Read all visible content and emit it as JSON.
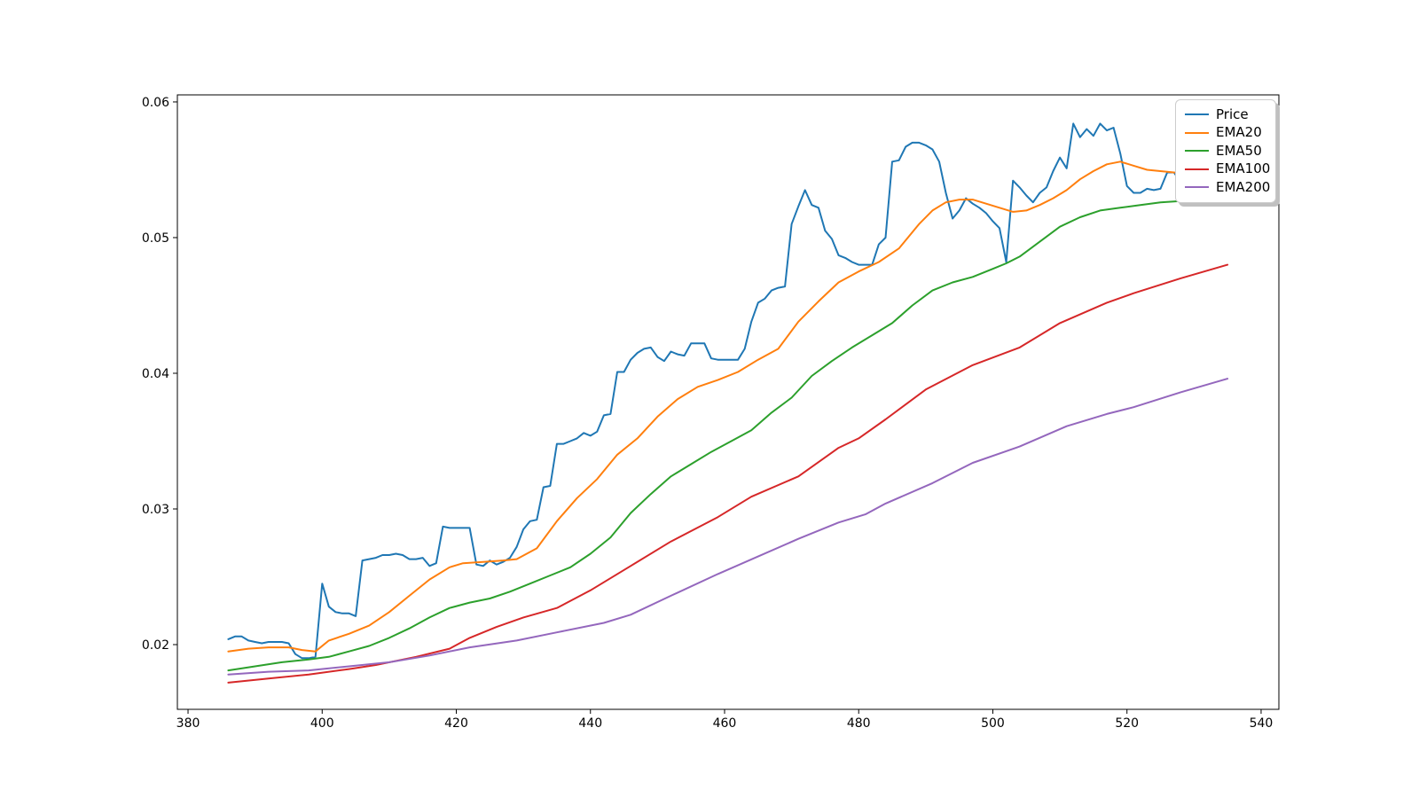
{
  "chart_data": {
    "type": "line",
    "title": "",
    "xlabel": "",
    "ylabel": "",
    "xlim": [
      378.41,
      542.65
    ],
    "ylim": [
      0.01523,
      0.06052
    ],
    "xticks": [
      380,
      400,
      420,
      440,
      460,
      480,
      500,
      520,
      540
    ],
    "yticks": [
      0.02,
      0.03,
      0.04,
      0.05,
      0.06
    ],
    "grid": false,
    "legend": {
      "position": "upper-right",
      "shadow": true
    },
    "series": [
      {
        "name": "Price",
        "color": "#1f77b4",
        "x_start": 386,
        "x_step": 1,
        "values": [
          0.0204,
          0.0206,
          0.0206,
          0.0203,
          0.0202,
          0.0201,
          0.0202,
          0.0202,
          0.0202,
          0.0201,
          0.0193,
          0.019,
          0.019,
          0.0191,
          0.0245,
          0.0228,
          0.0224,
          0.0223,
          0.0223,
          0.0221,
          0.0262,
          0.0263,
          0.0264,
          0.0266,
          0.0266,
          0.0267,
          0.0266,
          0.0263,
          0.0263,
          0.0264,
          0.0258,
          0.026,
          0.0287,
          0.0286,
          0.0286,
          0.0286,
          0.0286,
          0.0259,
          0.0258,
          0.0262,
          0.0259,
          0.0261,
          0.0264,
          0.0272,
          0.0285,
          0.0291,
          0.0292,
          0.0316,
          0.0317,
          0.0348,
          0.0348,
          0.035,
          0.0352,
          0.0356,
          0.0354,
          0.0357,
          0.0369,
          0.037,
          0.0401,
          0.0401,
          0.041,
          0.0415,
          0.0418,
          0.0419,
          0.0412,
          0.0409,
          0.0416,
          0.0414,
          0.0413,
          0.0422,
          0.0422,
          0.0422,
          0.0411,
          0.041,
          0.041,
          0.041,
          0.041,
          0.0418,
          0.0438,
          0.0452,
          0.0455,
          0.0461,
          0.0463,
          0.0464,
          0.051,
          0.0523,
          0.0535,
          0.0524,
          0.0522,
          0.0505,
          0.0499,
          0.0487,
          0.0485,
          0.0482,
          0.048,
          0.048,
          0.048,
          0.0495,
          0.05,
          0.0556,
          0.0557,
          0.0567,
          0.057,
          0.057,
          0.0568,
          0.0565,
          0.0556,
          0.0533,
          0.0514,
          0.052,
          0.0529,
          0.0525,
          0.0522,
          0.0518,
          0.0512,
          0.0507,
          0.0482,
          0.0542,
          0.0537,
          0.0531,
          0.0526,
          0.0533,
          0.0537,
          0.0549,
          0.0559,
          0.0551,
          0.0584,
          0.0574,
          0.058,
          0.0575,
          0.0584,
          0.0579,
          0.0581,
          0.0562,
          0.0538,
          0.0533,
          0.0533,
          0.0536,
          0.0535,
          0.0536,
          0.0548,
          0.0548,
          0.0541,
          0.0566,
          0.0556,
          0.0552,
          0.055,
          0.0552,
          0.055,
          0.0551
        ]
      },
      {
        "name": "EMA20",
        "color": "#ff7f0e",
        "points": [
          [
            386,
            0.0195
          ],
          [
            389,
            0.0197
          ],
          [
            392,
            0.0198
          ],
          [
            395,
            0.0198
          ],
          [
            397,
            0.0196
          ],
          [
            399,
            0.0195
          ],
          [
            401,
            0.0203
          ],
          [
            404,
            0.0208
          ],
          [
            407,
            0.0214
          ],
          [
            410,
            0.0224
          ],
          [
            413,
            0.0236
          ],
          [
            416,
            0.0248
          ],
          [
            419,
            0.0257
          ],
          [
            421,
            0.026
          ],
          [
            424,
            0.0261
          ],
          [
            427,
            0.0262
          ],
          [
            429,
            0.0263
          ],
          [
            432,
            0.0271
          ],
          [
            435,
            0.0291
          ],
          [
            438,
            0.0308
          ],
          [
            441,
            0.0322
          ],
          [
            444,
            0.034
          ],
          [
            447,
            0.0352
          ],
          [
            450,
            0.0368
          ],
          [
            453,
            0.0381
          ],
          [
            456,
            0.039
          ],
          [
            459,
            0.0395
          ],
          [
            462,
            0.0401
          ],
          [
            465,
            0.041
          ],
          [
            468,
            0.0418
          ],
          [
            471,
            0.0438
          ],
          [
            474,
            0.0453
          ],
          [
            477,
            0.0467
          ],
          [
            480,
            0.0475
          ],
          [
            483,
            0.0482
          ],
          [
            486,
            0.0492
          ],
          [
            489,
            0.051
          ],
          [
            491,
            0.052
          ],
          [
            493,
            0.0526
          ],
          [
            495,
            0.0528
          ],
          [
            497,
            0.0528
          ],
          [
            499,
            0.0525
          ],
          [
            501,
            0.0522
          ],
          [
            503,
            0.0519
          ],
          [
            505,
            0.052
          ],
          [
            507,
            0.0524
          ],
          [
            509,
            0.0529
          ],
          [
            511,
            0.0535
          ],
          [
            513,
            0.0543
          ],
          [
            515,
            0.0549
          ],
          [
            517,
            0.0554
          ],
          [
            519,
            0.0556
          ],
          [
            521,
            0.0553
          ],
          [
            523,
            0.055
          ],
          [
            525,
            0.0549
          ],
          [
            527,
            0.0548
          ],
          [
            530,
            0.0547
          ],
          [
            533,
            0.0548
          ],
          [
            535,
            0.0549
          ]
        ]
      },
      {
        "name": "EMA50",
        "color": "#2ca02c",
        "points": [
          [
            386,
            0.0181
          ],
          [
            390,
            0.0184
          ],
          [
            394,
            0.0187
          ],
          [
            398,
            0.0189
          ],
          [
            401,
            0.0191
          ],
          [
            404,
            0.0195
          ],
          [
            407,
            0.0199
          ],
          [
            410,
            0.0205
          ],
          [
            413,
            0.0212
          ],
          [
            416,
            0.022
          ],
          [
            419,
            0.0227
          ],
          [
            422,
            0.0231
          ],
          [
            425,
            0.0234
          ],
          [
            428,
            0.0239
          ],
          [
            431,
            0.0245
          ],
          [
            434,
            0.0251
          ],
          [
            437,
            0.0257
          ],
          [
            440,
            0.0267
          ],
          [
            443,
            0.0279
          ],
          [
            446,
            0.0297
          ],
          [
            449,
            0.0311
          ],
          [
            452,
            0.0324
          ],
          [
            455,
            0.0333
          ],
          [
            458,
            0.0342
          ],
          [
            461,
            0.035
          ],
          [
            464,
            0.0358
          ],
          [
            467,
            0.0371
          ],
          [
            470,
            0.0382
          ],
          [
            473,
            0.0398
          ],
          [
            476,
            0.0409
          ],
          [
            479,
            0.0419
          ],
          [
            482,
            0.0428
          ],
          [
            485,
            0.0437
          ],
          [
            488,
            0.045
          ],
          [
            491,
            0.0461
          ],
          [
            494,
            0.0467
          ],
          [
            497,
            0.0471
          ],
          [
            500,
            0.0477
          ],
          [
            502,
            0.0481
          ],
          [
            504,
            0.0486
          ],
          [
            507,
            0.0497
          ],
          [
            510,
            0.0508
          ],
          [
            513,
            0.0515
          ],
          [
            516,
            0.052
          ],
          [
            519,
            0.0522
          ],
          [
            522,
            0.0524
          ],
          [
            525,
            0.0526
          ],
          [
            528,
            0.0527
          ],
          [
            531,
            0.0529
          ],
          [
            535,
            0.0531
          ]
        ]
      },
      {
        "name": "EMA100",
        "color": "#d62728",
        "points": [
          [
            386,
            0.0172
          ],
          [
            392,
            0.0175
          ],
          [
            398,
            0.0178
          ],
          [
            404,
            0.0182
          ],
          [
            408,
            0.0185
          ],
          [
            414,
            0.0191
          ],
          [
            419,
            0.0197
          ],
          [
            422,
            0.0205
          ],
          [
            426,
            0.0213
          ],
          [
            430,
            0.022
          ],
          [
            435,
            0.0227
          ],
          [
            440,
            0.024
          ],
          [
            446,
            0.0258
          ],
          [
            452,
            0.0276
          ],
          [
            459,
            0.0294
          ],
          [
            464,
            0.0309
          ],
          [
            471,
            0.0324
          ],
          [
            477,
            0.0345
          ],
          [
            480,
            0.0352
          ],
          [
            484,
            0.0366
          ],
          [
            490,
            0.0388
          ],
          [
            497,
            0.0406
          ],
          [
            504,
            0.0419
          ],
          [
            510,
            0.0437
          ],
          [
            517,
            0.0452
          ],
          [
            521,
            0.0459
          ],
          [
            528,
            0.047
          ],
          [
            535,
            0.048
          ]
        ]
      },
      {
        "name": "EMA200",
        "color": "#9467bd",
        "points": [
          [
            386,
            0.0178
          ],
          [
            392,
            0.018
          ],
          [
            398,
            0.0181
          ],
          [
            404,
            0.0184
          ],
          [
            410,
            0.0187
          ],
          [
            416,
            0.0192
          ],
          [
            422,
            0.0198
          ],
          [
            429,
            0.0203
          ],
          [
            435,
            0.0209
          ],
          [
            442,
            0.0216
          ],
          [
            446,
            0.0222
          ],
          [
            452,
            0.0236
          ],
          [
            459,
            0.0252
          ],
          [
            465,
            0.0265
          ],
          [
            471,
            0.0278
          ],
          [
            477,
            0.029
          ],
          [
            481,
            0.0296
          ],
          [
            484,
            0.0304
          ],
          [
            491,
            0.0319
          ],
          [
            497,
            0.0334
          ],
          [
            504,
            0.0346
          ],
          [
            511,
            0.0361
          ],
          [
            517,
            0.037
          ],
          [
            521,
            0.0375
          ],
          [
            528,
            0.0386
          ],
          [
            535,
            0.0396
          ]
        ]
      }
    ],
    "axis_color": "#000000",
    "tick_label_color": "#000000"
  }
}
